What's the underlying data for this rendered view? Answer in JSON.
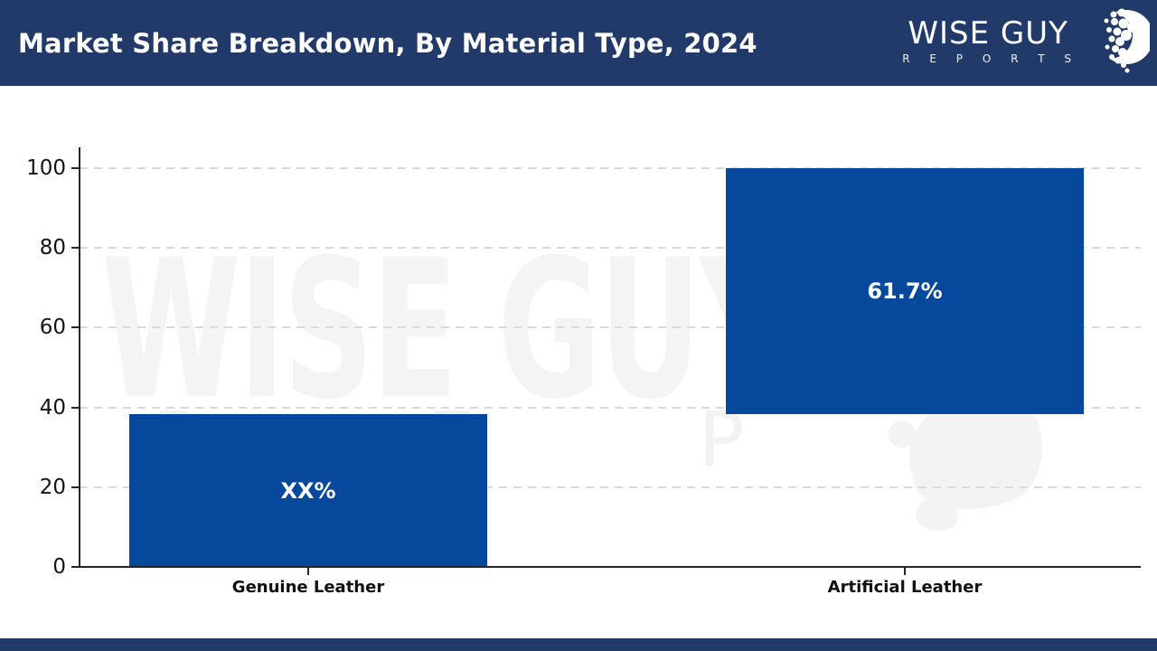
{
  "header": {
    "title": "Market Share Breakdown, By Material Type, 2024",
    "bg_color": "#223a69",
    "logo": {
      "line1": "WISE GUY",
      "line2": "R E P O R T S"
    }
  },
  "watermark": {
    "line1": "WISE GUY",
    "line2": "R E P O R T S",
    "color": "#f4f4f4"
  },
  "footer": {
    "bg_color": "#223a69"
  },
  "chart_data": {
    "type": "bar",
    "subtype": "stacked-percentage-breakdown",
    "title": "Market Share Breakdown, By Material Type, 2024",
    "categories": [
      "Genuine Leather",
      "Artificial Leather"
    ],
    "bars": [
      {
        "category": "Genuine Leather",
        "label": "XX%",
        "start": 0,
        "end": 38.3
      },
      {
        "category": "Artificial Leather",
        "label": "61.7%",
        "start": 38.3,
        "end": 100
      }
    ],
    "yticks": [
      0,
      20,
      40,
      60,
      80,
      100
    ],
    "ylim": [
      0,
      105
    ],
    "xlabel": "",
    "ylabel": "",
    "grid": "horizontal-dashed",
    "legend": "none",
    "bar_color": "#05489c",
    "bar_label_color": "#ffffff",
    "axis_color": "#262626",
    "grid_color": "#d9d9d9"
  }
}
